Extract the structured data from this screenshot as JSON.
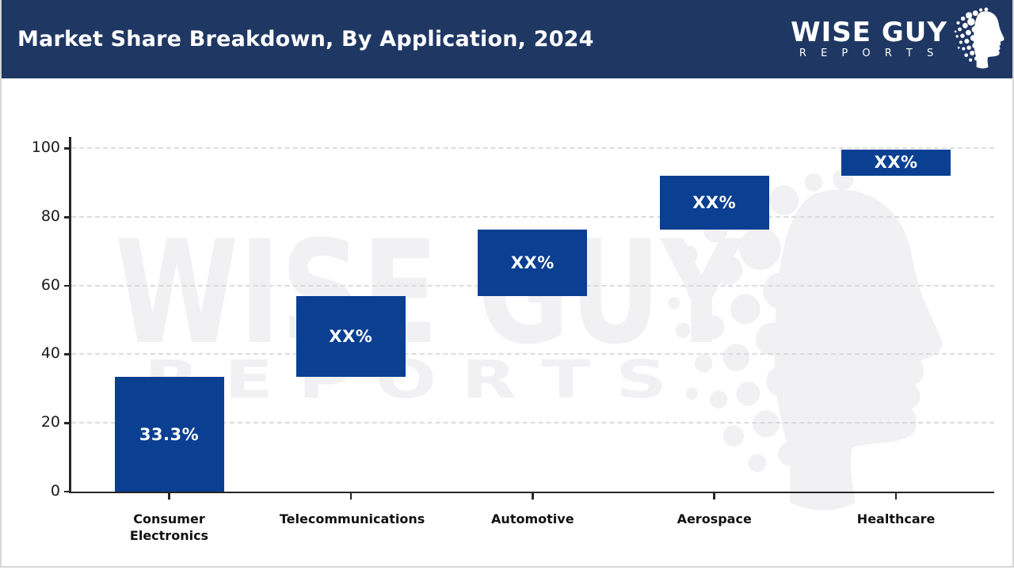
{
  "header": {
    "title": "Market Share Breakdown, By Application, 2024",
    "logo": {
      "name": "WISE GUY",
      "tagline": "R E P O R T S"
    }
  },
  "watermark": {
    "text_large": "WISE GUY",
    "text_small": "R E P O R T S"
  },
  "colors": {
    "header_bg": "#1f3763",
    "bar": "#0a3f92",
    "bar_label_text": "#ffffff",
    "grid": "#dcdcdc",
    "axis": "#262626",
    "watermark": "#f1f1f3",
    "page_border": "#d6d6d6"
  },
  "chart_data": {
    "type": "bar",
    "subtype": "waterfall",
    "title": "Market Share Breakdown, By Application, 2024",
    "categories": [
      "Consumer Electronics",
      "Telecommunications",
      "Automotive",
      "Aerospace",
      "Healthcare"
    ],
    "bars": [
      {
        "category": "Consumer Electronics",
        "start": 0,
        "end": 33.3,
        "value_label": "33.3%"
      },
      {
        "category": "Telecommunications",
        "start": 33.3,
        "end": 56.9,
        "value_label": "XX%"
      },
      {
        "category": "Automotive",
        "start": 56.9,
        "end": 76.3,
        "value_label": "XX%"
      },
      {
        "category": "Aerospace",
        "start": 76.3,
        "end": 92.1,
        "value_label": "XX%"
      },
      {
        "category": "Healthcare",
        "start": 92.1,
        "end": 99.6,
        "value_label": "XX%"
      }
    ],
    "xlabel": "",
    "ylabel": "",
    "yticks": [
      0,
      20,
      40,
      60,
      80,
      100
    ],
    "ylim": [
      0,
      103
    ],
    "grid": "horizontal-dashed",
    "legend": "none",
    "bar_color": "#0a3f92",
    "value_label_masked": "XX%"
  }
}
